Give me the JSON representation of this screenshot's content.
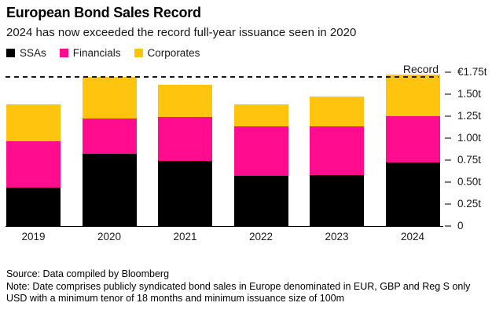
{
  "header": {
    "title": "European Bond Sales Record",
    "subtitle": "2024 has now exceeded the record full-year issuance seen in 2020"
  },
  "chart_data": {
    "type": "bar",
    "stacked": true,
    "categories": [
      "2019",
      "2020",
      "2021",
      "2022",
      "2023",
      "2024"
    ],
    "series": [
      {
        "name": "SSAs",
        "color": "#000000",
        "values": [
          0.44,
          0.82,
          0.74,
          0.57,
          0.58,
          0.72
        ]
      },
      {
        "name": "Financials",
        "color": "#ff0d8e",
        "values": [
          0.52,
          0.4,
          0.5,
          0.56,
          0.55,
          0.53
        ]
      },
      {
        "name": "Corporates",
        "color": "#ffc40d",
        "values": [
          0.42,
          0.48,
          0.37,
          0.25,
          0.34,
          0.47
        ]
      }
    ],
    "totals": [
      1.38,
      1.7,
      1.61,
      1.38,
      1.47,
      1.72
    ],
    "record_line": {
      "label": "Record",
      "value": 1.71
    },
    "unit": "trillion EUR",
    "y_axis": {
      "ylim": [
        0,
        1.75
      ],
      "tick_step": 0.25,
      "tick_labels": [
        "0",
        "0.25t",
        "0.50t",
        "0.75t",
        "1.00t",
        "1.25t",
        "1.50t",
        "€1.75t"
      ],
      "position": "right"
    },
    "xlabel": "",
    "ylabel": "",
    "grid": false,
    "legend_position": "top-left"
  },
  "footer": {
    "source": "Source: Data compiled by Bloomberg",
    "note_lines": [
      "Note: Date comprises publicly syndicated bond sales in Europe denominated in EUR, GBP and Reg S only",
      "USD with a minimum tenor of 18 months and minimum issuance size of 100m"
    ]
  }
}
